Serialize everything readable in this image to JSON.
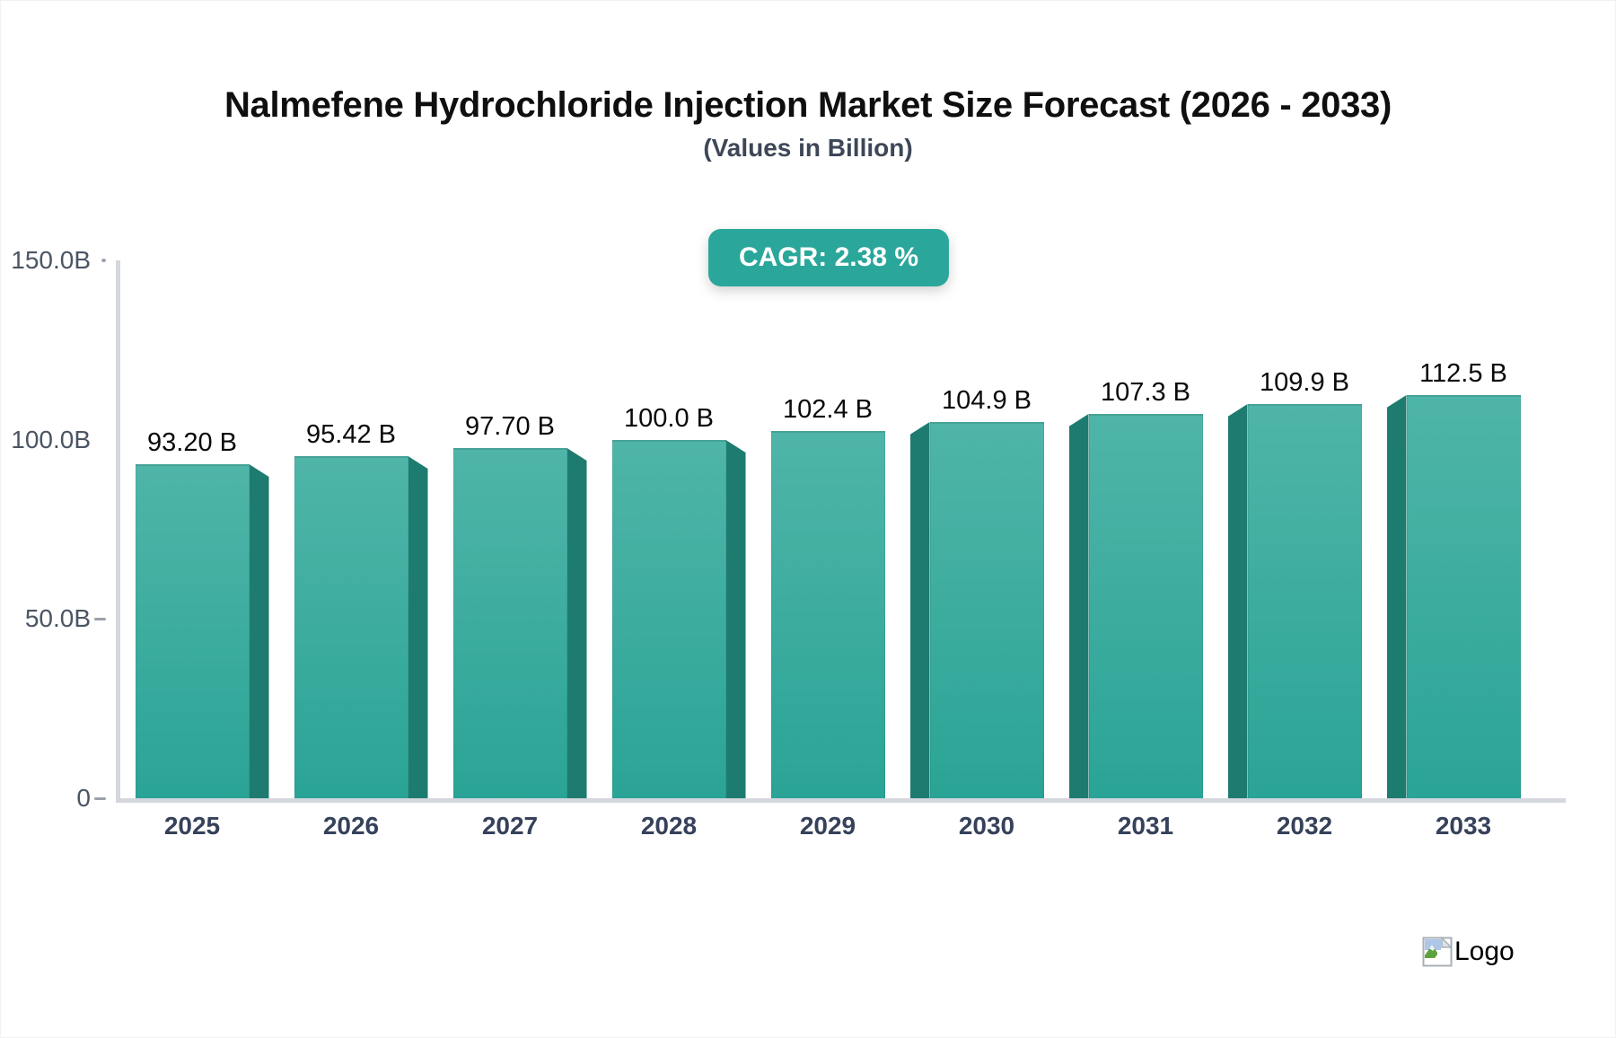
{
  "header": {
    "title": "Nalmefene Hydrochloride Injection Market Size Forecast (2026 - 2033)",
    "subtitle": "(Values in Billion)",
    "cagr_label": "CAGR: 2.38 %"
  },
  "chart_data": {
    "type": "bar",
    "title": "Nalmefene Hydrochloride Injection Market Size Forecast (2026 - 2033)",
    "subtitle": "(Values in Billion)",
    "categories": [
      "2025",
      "2026",
      "2027",
      "2028",
      "2029",
      "2030",
      "2031",
      "2032",
      "2033"
    ],
    "values": [
      93.2,
      95.42,
      97.7,
      100.0,
      102.4,
      104.9,
      107.3,
      109.9,
      112.5
    ],
    "value_labels": [
      "93.20 B",
      "95.42 B",
      "97.70 B",
      "100.0 B",
      "102.4 B",
      "104.9 B",
      "107.3 B",
      "109.9 B",
      "112.5 B"
    ],
    "xlabel": "",
    "ylabel": "",
    "ylim": [
      0,
      150
    ],
    "yticks": [
      {
        "value": 150,
        "label": "150.0B"
      },
      {
        "value": 100,
        "label": "100.0B"
      },
      {
        "value": 50,
        "label": "50.0B"
      },
      {
        "value": 0,
        "label": "0"
      }
    ],
    "grid": false,
    "legend": "none",
    "bar_style": {
      "face_top_color": "#4fb5a8",
      "face_bottom_color": "#2aa496",
      "side_color": "#1e7b70"
    }
  },
  "colors": {
    "accent": "#2aa79a",
    "axis": "#d5d7de",
    "tick": "#9aa0ab",
    "y_label": "#4b5563",
    "x_label": "#36415a",
    "value_label": "#0a0a0a"
  },
  "footer": {
    "logo_text": "Logo",
    "logo_icon": "broken-image-icon"
  }
}
